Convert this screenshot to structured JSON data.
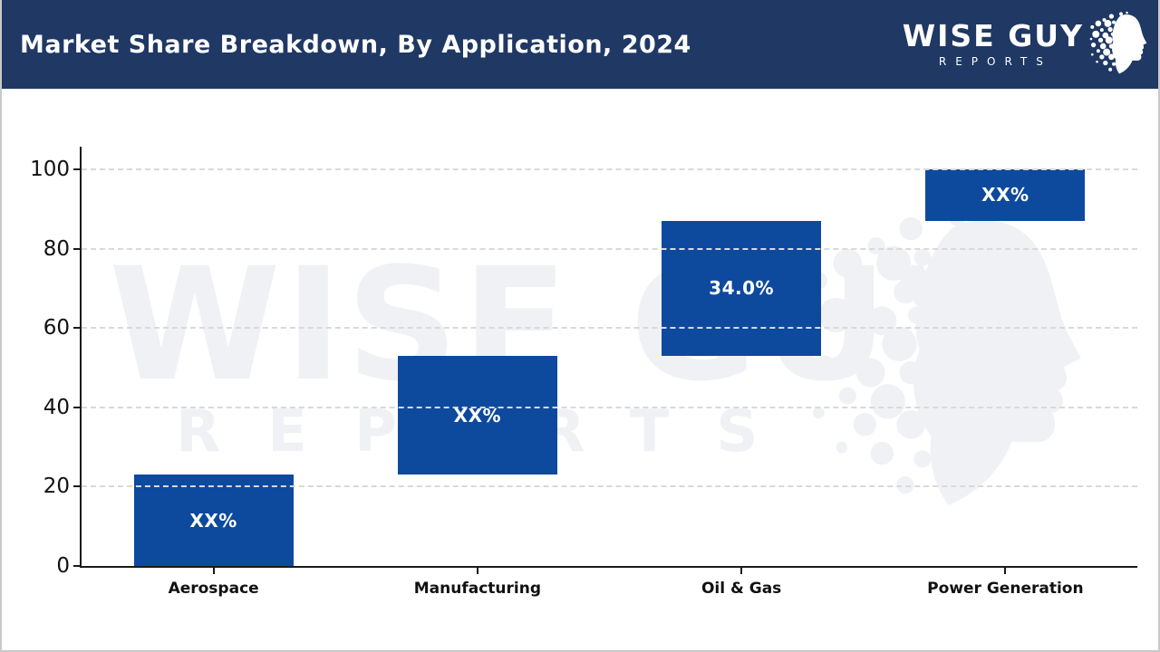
{
  "header": {
    "title": "Market Share Breakdown, By Application, 2024",
    "logo": {
      "brand": "WISE GUY",
      "sub": "REPORTS"
    }
  },
  "watermark": {
    "brand": "WISE GUY",
    "sub": "REPORTS"
  },
  "chart_data": {
    "type": "bar",
    "variant": "waterfall-floating-bars",
    "title": "Market Share Breakdown, By Application, 2024",
    "categories": [
      "Aerospace",
      "Manufacturing",
      "Oil & Gas",
      "Power Generation"
    ],
    "segments": [
      {
        "category": "Aerospace",
        "start": 0,
        "end": 23,
        "share_pct": 23,
        "label": "XX%"
      },
      {
        "category": "Manufacturing",
        "start": 23,
        "end": 53,
        "share_pct": 30,
        "label": "XX%"
      },
      {
        "category": "Oil & Gas",
        "start": 53,
        "end": 87,
        "share_pct": 34,
        "label": "34.0%"
      },
      {
        "category": "Power Generation",
        "start": 87,
        "end": 100,
        "share_pct": 13,
        "label": "XX%"
      }
    ],
    "yticks": [
      0,
      20,
      40,
      60,
      80,
      100
    ],
    "ylim": [
      0,
      105
    ],
    "xlabel": "",
    "ylabel": "",
    "grid": "horizontal-dashed-over-bars",
    "legend": "none"
  },
  "colors": {
    "header_bg": "#1f3864",
    "bar_blue": "#0d4a9d",
    "grid_line": "#d9d9d9",
    "axis_line": "#1a1a1a",
    "watermark": "#f0f1f4",
    "bar_label": "#ffffff",
    "page_bg": "#ffffff",
    "border": "#c9c9c9"
  }
}
